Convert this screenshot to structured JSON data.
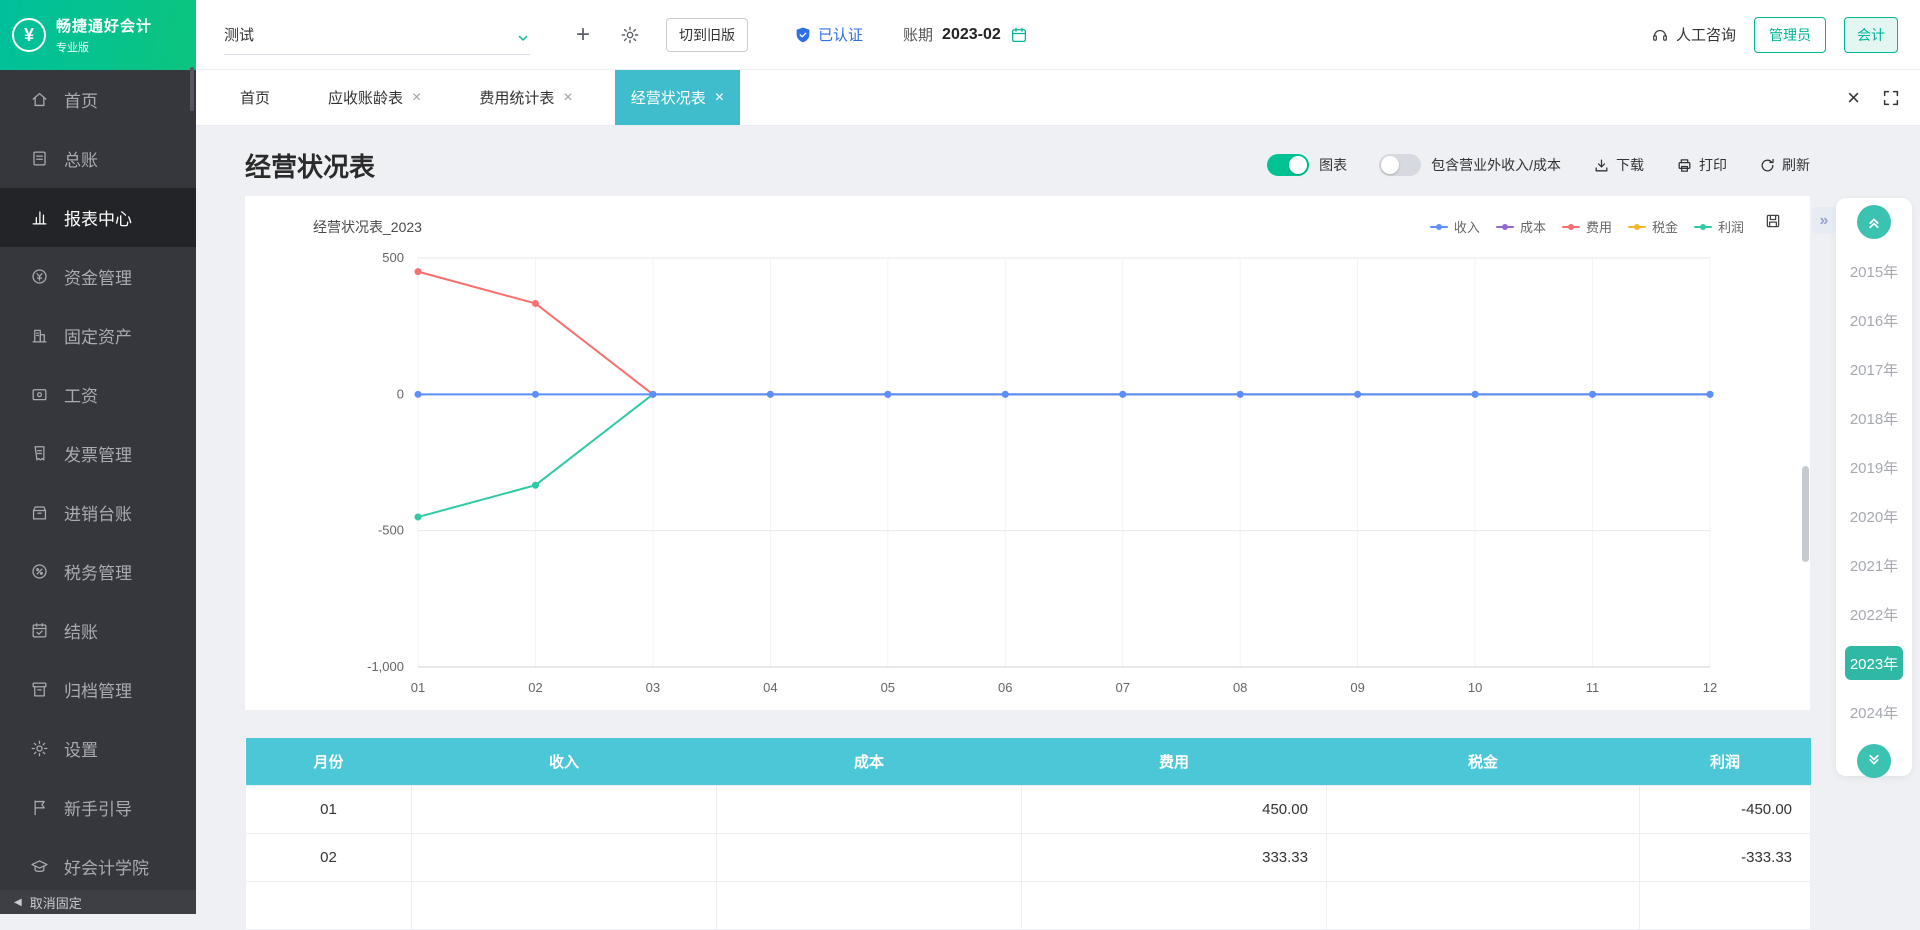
{
  "brand": {
    "name": "畅捷通好会计",
    "edition": "专业版",
    "logo_glyph": "¥"
  },
  "sidebar": {
    "items": [
      {
        "label": "首页",
        "icon": "home"
      },
      {
        "label": "总账",
        "icon": "ledger"
      },
      {
        "label": "报表中心",
        "icon": "report",
        "active": true
      },
      {
        "label": "资金管理",
        "icon": "funds"
      },
      {
        "label": "固定资产",
        "icon": "assets"
      },
      {
        "label": "工资",
        "icon": "salary"
      },
      {
        "label": "发票管理",
        "icon": "invoice"
      },
      {
        "label": "进销台账",
        "icon": "inventory"
      },
      {
        "label": "税务管理",
        "icon": "tax"
      },
      {
        "label": "结账",
        "icon": "closing"
      },
      {
        "label": "归档管理",
        "icon": "archive"
      },
      {
        "label": "设置",
        "icon": "settings"
      },
      {
        "label": "新手引导",
        "icon": "guide"
      },
      {
        "label": "好会计学院",
        "icon": "academy"
      }
    ],
    "unpin_label": "取消固定"
  },
  "topbar": {
    "account_set": "测试",
    "switch_old_label": "切到旧版",
    "certified_label": "已认证",
    "period_label": "账期",
    "period_value": "2023-02",
    "consult_label": "人工咨询",
    "admin_label": "管理员",
    "accountant_label": "会计"
  },
  "tabs": [
    {
      "label": "首页",
      "closable": false
    },
    {
      "label": "应收账龄表",
      "closable": true
    },
    {
      "label": "费用统计表",
      "closable": true
    },
    {
      "label": "经营状况表",
      "closable": true,
      "active": true
    }
  ],
  "page": {
    "title": "经营状况表",
    "chart_toggle_label": "图表",
    "include_toggle_label": "包含营业外收入/成本",
    "download_label": "下载",
    "print_label": "打印",
    "refresh_label": "刷新"
  },
  "chart_data": {
    "type": "line",
    "title": "经营状况表_2023",
    "categories": [
      "01",
      "02",
      "03",
      "04",
      "05",
      "06",
      "07",
      "08",
      "09",
      "10",
      "11",
      "12"
    ],
    "series": [
      {
        "name": "收入",
        "color": "#5B8FF9",
        "values": [
          0,
          0,
          0,
          0,
          0,
          0,
          0,
          0,
          0,
          0,
          0,
          0
        ]
      },
      {
        "name": "成本",
        "color": "#9168D1",
        "values": []
      },
      {
        "name": "费用",
        "color": "#F5706F",
        "values": [
          450,
          333.33,
          0,
          0,
          0,
          0,
          0,
          0,
          0,
          0,
          0,
          0
        ]
      },
      {
        "name": "税金",
        "color": "#F3B72F",
        "values": []
      },
      {
        "name": "利润",
        "color": "#2FC9A5",
        "values": [
          -450,
          -333.33,
          0,
          0,
          0,
          0,
          0,
          0,
          0,
          0,
          0,
          0
        ]
      }
    ],
    "ylim": [
      -1000,
      500
    ],
    "yticks": [
      500,
      0,
      -500,
      -1000
    ],
    "ytick_labels": [
      "500",
      "0",
      "-500",
      "-1,000"
    ],
    "legend_position": "top-right",
    "grid": true
  },
  "table": {
    "headers": [
      "月份",
      "收入",
      "成本",
      "费用",
      "税金",
      "利润"
    ],
    "rows": [
      [
        "01",
        "",
        "",
        "450.00",
        "",
        "-450.00"
      ],
      [
        "02",
        "",
        "",
        "333.33",
        "",
        "-333.33"
      ]
    ]
  },
  "year_panel": {
    "years": [
      "2015年",
      "2016年",
      "2017年",
      "2018年",
      "2019年",
      "2020年",
      "2021年",
      "2022年",
      "2023年",
      "2024年"
    ],
    "active_year": "2023年"
  },
  "colors": {
    "accent": "#00B696",
    "sidebar_bg": "#36373C",
    "sidebar_active": "#232428",
    "tab_active": "#3FBDCD",
    "table_header": "#4CC7D8",
    "toggle_on": "#00C292",
    "certified": "#2F6FE4",
    "year_active": "#2FB9A4"
  }
}
